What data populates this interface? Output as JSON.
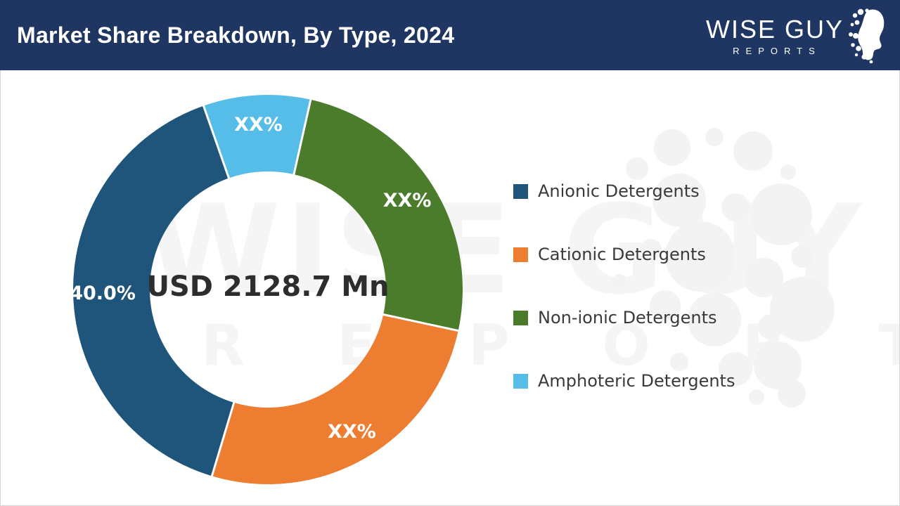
{
  "header": {
    "title": "Market Share Breakdown, By Type, 2024",
    "bg_color": "#1F3663",
    "logo": {
      "line1": "WISE GUY",
      "line2": "REPORTS"
    }
  },
  "watermark": {
    "line1": "WISE GUY",
    "line2": "R E P O R T S"
  },
  "chart_data": {
    "type": "pie",
    "style": "donut",
    "title": "Market Share Breakdown, By Type, 2024",
    "center_label": "USD 2128.7 Mn",
    "legend_position": "right",
    "inner_radius_ratio": 0.61,
    "slices": [
      {
        "name": "Anionic Detergents",
        "label": "40.0%",
        "value_pct": 40.0,
        "color": "#1F547B",
        "start_deg": 196.7,
        "sweep_deg": 144.0
      },
      {
        "name": "Cationic Detergents",
        "label": "XX%",
        "value_pct": 26.2,
        "color": "#ED7D31",
        "start_deg": 102.2,
        "sweep_deg": 94.5
      },
      {
        "name": "Non-ionic Detergents",
        "label": "XX%",
        "value_pct": 24.9,
        "color": "#4A7C2B",
        "start_deg": 12.7,
        "sweep_deg": 89.5
      },
      {
        "name": "Amphoteric Detergents",
        "label": "XX%",
        "value_pct": 8.9,
        "color": "#55BDE8",
        "start_deg": 340.7,
        "sweep_deg": 32.0
      }
    ]
  },
  "legend": {
    "items": [
      {
        "label": "Anionic Detergents",
        "color": "#1F547B"
      },
      {
        "label": "Cationic Detergents",
        "color": "#ED7D31"
      },
      {
        "label": "Non-ionic Detergents",
        "color": "#4A7C2B"
      },
      {
        "label": "Amphoteric Detergents",
        "color": "#55BDE8"
      }
    ]
  }
}
